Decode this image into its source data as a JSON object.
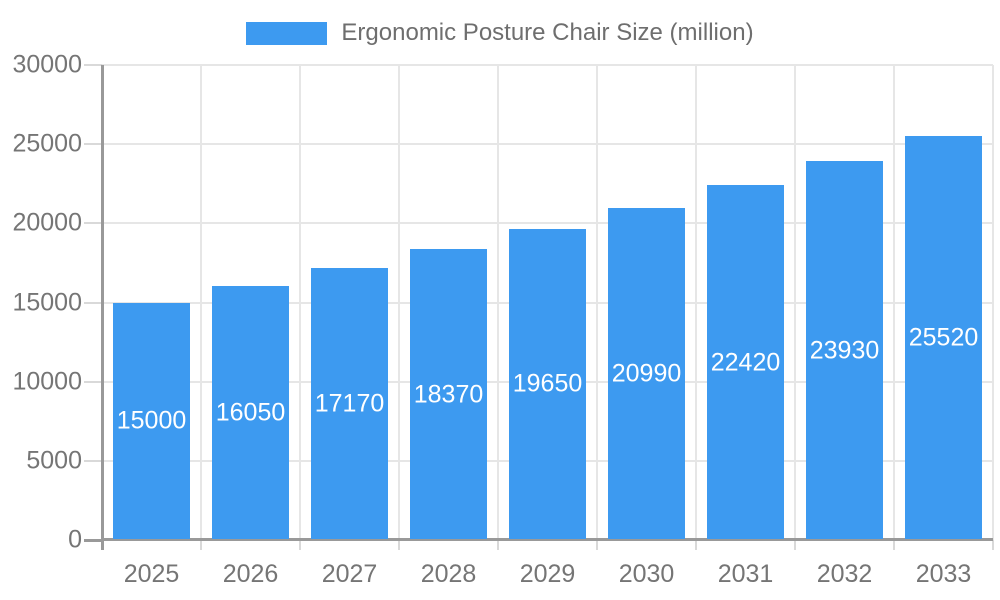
{
  "legend": {
    "label": "Ergonomic Posture Chair Size (million)"
  },
  "chart_data": {
    "type": "bar",
    "title": "Ergonomic Posture Chair Size (million)",
    "categories": [
      "2025",
      "2026",
      "2027",
      "2028",
      "2029",
      "2030",
      "2031",
      "2032",
      "2033"
    ],
    "values": [
      15000,
      16050,
      17170,
      18370,
      19650,
      20990,
      22420,
      23930,
      25520
    ],
    "xlabel": "",
    "ylabel": "",
    "ylim": [
      0,
      30000
    ],
    "yticks": [
      0,
      5000,
      10000,
      15000,
      20000,
      25000,
      30000
    ],
    "grid": true,
    "legend_position": "top-center",
    "bar_labels_inside": true,
    "colors": {
      "bar": "#3D9AF0",
      "bar_label": "#FFFFFF",
      "axis_text": "#757575",
      "legend_text": "#6E6E6E",
      "gridline": "#E6E6E6",
      "axis_line": "#999999",
      "minor_tick": "#D9D9D9",
      "background": "#FFFFFF"
    }
  }
}
